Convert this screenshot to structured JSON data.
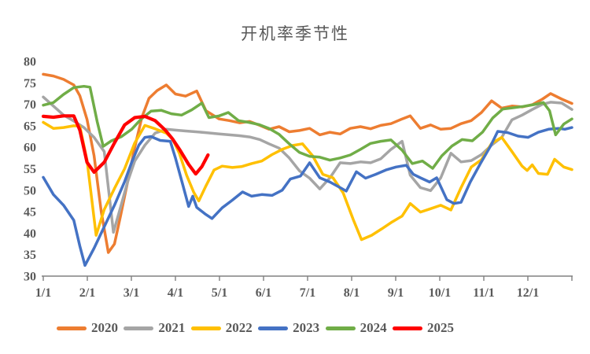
{
  "chart_data": {
    "type": "line",
    "title": "开机率季节性",
    "grid": false,
    "legend_position": "bottom",
    "label_color": "#595959",
    "axis_color": "#808080",
    "y_axis": {
      "min": 30,
      "max": 80,
      "step": 5,
      "ticks": [
        80,
        75,
        70,
        65,
        60,
        55,
        50,
        45,
        40,
        35,
        30
      ]
    },
    "x_axis": {
      "unit": "weeks since Jan 1",
      "range_weeks": [
        0,
        52
      ],
      "tick_labels": [
        "1/1",
        "2/1",
        "3/1",
        "4/1",
        "5/1",
        "6/1",
        "7/1",
        "8/1",
        "9/1",
        "10/1",
        "11/1",
        "12/1"
      ]
    },
    "series": [
      {
        "name": "2020",
        "color": "#ED7D31",
        "points": [
          [
            0,
            77
          ],
          [
            1,
            76.6
          ],
          [
            2,
            75.8
          ],
          [
            3,
            74.5
          ],
          [
            3.6,
            72
          ],
          [
            4.3,
            66.5
          ],
          [
            5,
            58
          ],
          [
            5.7,
            45
          ],
          [
            6.4,
            35.5
          ],
          [
            7,
            37.5
          ],
          [
            7.6,
            44
          ],
          [
            8.3,
            52
          ],
          [
            9,
            60
          ],
          [
            9.7,
            67
          ],
          [
            10.4,
            71.4
          ],
          [
            11.2,
            73.2
          ],
          [
            12.1,
            74.5
          ],
          [
            13,
            72.4
          ],
          [
            14,
            71.9
          ],
          [
            15.1,
            73.1
          ],
          [
            16,
            68.5
          ],
          [
            17.3,
            66.6
          ],
          [
            18.3,
            66.2
          ],
          [
            19.3,
            65.7
          ],
          [
            20.3,
            66
          ],
          [
            21.3,
            65.1
          ],
          [
            22.2,
            64.2
          ],
          [
            23.2,
            64.8
          ],
          [
            24.2,
            63.6
          ],
          [
            25.2,
            63.9
          ],
          [
            26.2,
            64.4
          ],
          [
            27.2,
            62.9
          ],
          [
            28.2,
            63.5
          ],
          [
            29.2,
            63.1
          ],
          [
            30.2,
            64.4
          ],
          [
            31.2,
            64.8
          ],
          [
            32.2,
            64.3
          ],
          [
            33.2,
            65.1
          ],
          [
            34.2,
            65.5
          ],
          [
            35.3,
            66.6
          ],
          [
            36.1,
            67.3
          ],
          [
            37.1,
            64.4
          ],
          [
            38.1,
            65.2
          ],
          [
            39.1,
            64.2
          ],
          [
            40.1,
            64.4
          ],
          [
            41.1,
            65.5
          ],
          [
            42.1,
            66.2
          ],
          [
            43.1,
            68.1
          ],
          [
            44.1,
            70.8
          ],
          [
            45.1,
            69.1
          ],
          [
            46.1,
            69.6
          ],
          [
            47.1,
            69.4
          ],
          [
            48.1,
            69.9
          ],
          [
            49.1,
            71.2
          ],
          [
            49.9,
            72.5
          ],
          [
            51,
            71.2
          ],
          [
            52,
            70.2
          ]
        ]
      },
      {
        "name": "2021",
        "color": "#A5A5A5",
        "points": [
          [
            0,
            71.7
          ],
          [
            1,
            69.6
          ],
          [
            2,
            67.5
          ],
          [
            3,
            66.1
          ],
          [
            4,
            64.6
          ],
          [
            5,
            62.3
          ],
          [
            6,
            59
          ],
          [
            6.9,
            40.2
          ],
          [
            7.6,
            46
          ],
          [
            8.3,
            52
          ],
          [
            9,
            56.8
          ],
          [
            10,
            60.5
          ],
          [
            11,
            63.3
          ],
          [
            12.1,
            64.2
          ],
          [
            13,
            64
          ],
          [
            14,
            63.8
          ],
          [
            15,
            63.6
          ],
          [
            16,
            63.4
          ],
          [
            17.3,
            63.1
          ],
          [
            18.3,
            62.9
          ],
          [
            19.3,
            62.7
          ],
          [
            20.3,
            62.4
          ],
          [
            21.3,
            61.8
          ],
          [
            22.2,
            60.8
          ],
          [
            23.2,
            59.8
          ],
          [
            24.2,
            57.5
          ],
          [
            25.2,
            54.5
          ],
          [
            26.2,
            52.8
          ],
          [
            27.2,
            50.3
          ],
          [
            28.2,
            52.9
          ],
          [
            29.2,
            56.4
          ],
          [
            30.2,
            56.2
          ],
          [
            31.2,
            56.6
          ],
          [
            32.2,
            56.4
          ],
          [
            33.2,
            57.3
          ],
          [
            34.2,
            59.5
          ],
          [
            35.3,
            61.4
          ],
          [
            36.1,
            53.5
          ],
          [
            37.1,
            50.6
          ],
          [
            38.1,
            49.9
          ],
          [
            39.1,
            52.9
          ],
          [
            40.1,
            58.6
          ],
          [
            41.1,
            56.6
          ],
          [
            42.1,
            56.9
          ],
          [
            43.1,
            58.3
          ],
          [
            44.1,
            60.5
          ],
          [
            45.1,
            62.3
          ],
          [
            46.1,
            66.4
          ],
          [
            47.1,
            67.5
          ],
          [
            48.1,
            68.8
          ],
          [
            49.1,
            70
          ],
          [
            49.9,
            70.5
          ],
          [
            51,
            70.3
          ],
          [
            52,
            68.8
          ]
        ]
      },
      {
        "name": "2022",
        "color": "#FFC000",
        "points": [
          [
            0,
            65.8
          ],
          [
            1,
            64.4
          ],
          [
            2,
            64.6
          ],
          [
            3,
            65
          ],
          [
            3.6,
            64.9
          ],
          [
            4.3,
            57
          ],
          [
            5.2,
            39.5
          ],
          [
            6,
            45.5
          ],
          [
            7,
            50.4
          ],
          [
            8,
            55
          ],
          [
            9,
            61
          ],
          [
            10,
            65.1
          ],
          [
            11,
            64.3
          ],
          [
            12.1,
            63.3
          ],
          [
            12.7,
            62
          ],
          [
            13.4,
            58.5
          ],
          [
            14.1,
            53.5
          ],
          [
            14.8,
            49.5
          ],
          [
            15.3,
            47.5
          ],
          [
            16,
            51
          ],
          [
            16.8,
            54.7
          ],
          [
            17.6,
            55.6
          ],
          [
            18.6,
            55.3
          ],
          [
            19.5,
            55.5
          ],
          [
            20.5,
            56.2
          ],
          [
            21.5,
            56.8
          ],
          [
            22.5,
            58.3
          ],
          [
            23.5,
            59.5
          ],
          [
            24.5,
            60.4
          ],
          [
            25.5,
            60.8
          ],
          [
            26.5,
            58
          ],
          [
            27.5,
            53.7
          ],
          [
            28.5,
            52.9
          ],
          [
            29.5,
            49.4
          ],
          [
            30.5,
            43.1
          ],
          [
            31.3,
            38.5
          ],
          [
            32.3,
            39.5
          ],
          [
            33.3,
            41
          ],
          [
            34.3,
            42.6
          ],
          [
            35.3,
            44
          ],
          [
            36.1,
            46.9
          ],
          [
            37.1,
            44.9
          ],
          [
            38.1,
            45.7
          ],
          [
            39.1,
            46.5
          ],
          [
            40.1,
            45.4
          ],
          [
            41.1,
            50.6
          ],
          [
            42.1,
            55.4
          ],
          [
            43.1,
            57.1
          ],
          [
            44.1,
            60.9
          ],
          [
            45.1,
            62.3
          ],
          [
            46.1,
            59
          ],
          [
            47.1,
            55.6
          ],
          [
            47.6,
            54.6
          ],
          [
            48.1,
            55.9
          ],
          [
            48.7,
            53.9
          ],
          [
            49.6,
            53.7
          ],
          [
            50.3,
            57.2
          ],
          [
            51.2,
            55.4
          ],
          [
            52,
            54.8
          ]
        ]
      },
      {
        "name": "2023",
        "color": "#4472C4",
        "points": [
          [
            0,
            53
          ],
          [
            1,
            49
          ],
          [
            2,
            46.5
          ],
          [
            3,
            43
          ],
          [
            3.6,
            37
          ],
          [
            4.1,
            32.5
          ],
          [
            5,
            36.5
          ],
          [
            6,
            41.5
          ],
          [
            7,
            46.5
          ],
          [
            8,
            52
          ],
          [
            8.7,
            56.5
          ],
          [
            9.4,
            60.5
          ],
          [
            10,
            62.3
          ],
          [
            10.6,
            62.5
          ],
          [
            11.5,
            61.6
          ],
          [
            12.5,
            61.4
          ],
          [
            13,
            57.5
          ],
          [
            13.7,
            51.5
          ],
          [
            14.3,
            46.2
          ],
          [
            14.7,
            48.6
          ],
          [
            15.1,
            46
          ],
          [
            15.9,
            44.5
          ],
          [
            16.6,
            43.4
          ],
          [
            17.6,
            45.9
          ],
          [
            18.6,
            47.7
          ],
          [
            19.6,
            49.6
          ],
          [
            20.5,
            48.6
          ],
          [
            21.5,
            49
          ],
          [
            22.5,
            48.8
          ],
          [
            23.5,
            50
          ],
          [
            24.3,
            52.6
          ],
          [
            25.3,
            53.3
          ],
          [
            26.2,
            56.4
          ],
          [
            27.2,
            52.9
          ],
          [
            28.2,
            51.9
          ],
          [
            29.2,
            50.6
          ],
          [
            29.8,
            49.8
          ],
          [
            30.8,
            54.3
          ],
          [
            31.7,
            52.8
          ],
          [
            32.7,
            53.7
          ],
          [
            33.7,
            54.7
          ],
          [
            34.7,
            55.4
          ],
          [
            35.7,
            55.8
          ],
          [
            36.4,
            53.7
          ],
          [
            37.1,
            52.9
          ],
          [
            38,
            51.9
          ],
          [
            38.7,
            52.9
          ],
          [
            39.7,
            47.8
          ],
          [
            40.4,
            46.9
          ],
          [
            41.1,
            47.2
          ],
          [
            42,
            51.9
          ],
          [
            43,
            56.2
          ],
          [
            44,
            60.3
          ],
          [
            44.7,
            63.7
          ],
          [
            45.7,
            63.4
          ],
          [
            46.7,
            62.6
          ],
          [
            47.7,
            62.3
          ],
          [
            48.7,
            63.5
          ],
          [
            49.7,
            64.2
          ],
          [
            50.7,
            64.4
          ],
          [
            51.3,
            64.2
          ],
          [
            52,
            64.6
          ]
        ]
      },
      {
        "name": "2024",
        "color": "#70AD47",
        "points": [
          [
            0,
            69.8
          ],
          [
            1,
            70.4
          ],
          [
            2,
            72.3
          ],
          [
            3,
            73.9
          ],
          [
            4,
            74.2
          ],
          [
            4.6,
            74
          ],
          [
            5.3,
            66
          ],
          [
            5.9,
            60.2
          ],
          [
            6.7,
            61.5
          ],
          [
            7.7,
            62.5
          ],
          [
            8.7,
            64.2
          ],
          [
            9.6,
            66.5
          ],
          [
            10.6,
            68.4
          ],
          [
            11.6,
            68.6
          ],
          [
            12.6,
            67.8
          ],
          [
            13.6,
            67.5
          ],
          [
            14.6,
            68.7
          ],
          [
            15.6,
            70.3
          ],
          [
            16.3,
            66.9
          ],
          [
            17.3,
            67.3
          ],
          [
            18.2,
            68.1
          ],
          [
            19.2,
            66.2
          ],
          [
            20.2,
            65.8
          ],
          [
            21.2,
            65.3
          ],
          [
            22.2,
            64.4
          ],
          [
            23.2,
            63
          ],
          [
            24.2,
            60.8
          ],
          [
            25.2,
            58.8
          ],
          [
            26.2,
            57.9
          ],
          [
            27.2,
            57.7
          ],
          [
            28.2,
            57
          ],
          [
            29.2,
            57.5
          ],
          [
            30.2,
            58.2
          ],
          [
            31.2,
            59.5
          ],
          [
            32.2,
            60.9
          ],
          [
            33.2,
            61.4
          ],
          [
            34.2,
            61.7
          ],
          [
            35.3,
            59.3
          ],
          [
            36.3,
            56.2
          ],
          [
            37.3,
            56.8
          ],
          [
            38.3,
            55.1
          ],
          [
            39.2,
            58
          ],
          [
            40.2,
            60.3
          ],
          [
            41.2,
            61.8
          ],
          [
            42.2,
            61.5
          ],
          [
            43.2,
            63.5
          ],
          [
            44.2,
            66.8
          ],
          [
            45.2,
            68.9
          ],
          [
            46.2,
            69.2
          ],
          [
            47.2,
            69.5
          ],
          [
            48.2,
            69.9
          ],
          [
            49.2,
            70.4
          ],
          [
            49.8,
            68.5
          ],
          [
            50.4,
            62.9
          ],
          [
            51.2,
            65.4
          ],
          [
            52,
            66.6
          ]
        ]
      },
      {
        "name": "2025",
        "color": "#FF0000",
        "points": [
          [
            0,
            67.2
          ],
          [
            1,
            67
          ],
          [
            2,
            67.3
          ],
          [
            3,
            67.3
          ],
          [
            3.6,
            64
          ],
          [
            4.3,
            56.5
          ],
          [
            5,
            54.2
          ],
          [
            6,
            56.5
          ],
          [
            7,
            61
          ],
          [
            8,
            65.2
          ],
          [
            9,
            66.9
          ],
          [
            10,
            67.2
          ],
          [
            11,
            66.2
          ],
          [
            12,
            64
          ],
          [
            12.7,
            62
          ],
          [
            13.4,
            59.5
          ],
          [
            14.3,
            56
          ],
          [
            15,
            53.8
          ],
          [
            15.6,
            55.5
          ],
          [
            16.2,
            58.2
          ]
        ]
      }
    ]
  }
}
